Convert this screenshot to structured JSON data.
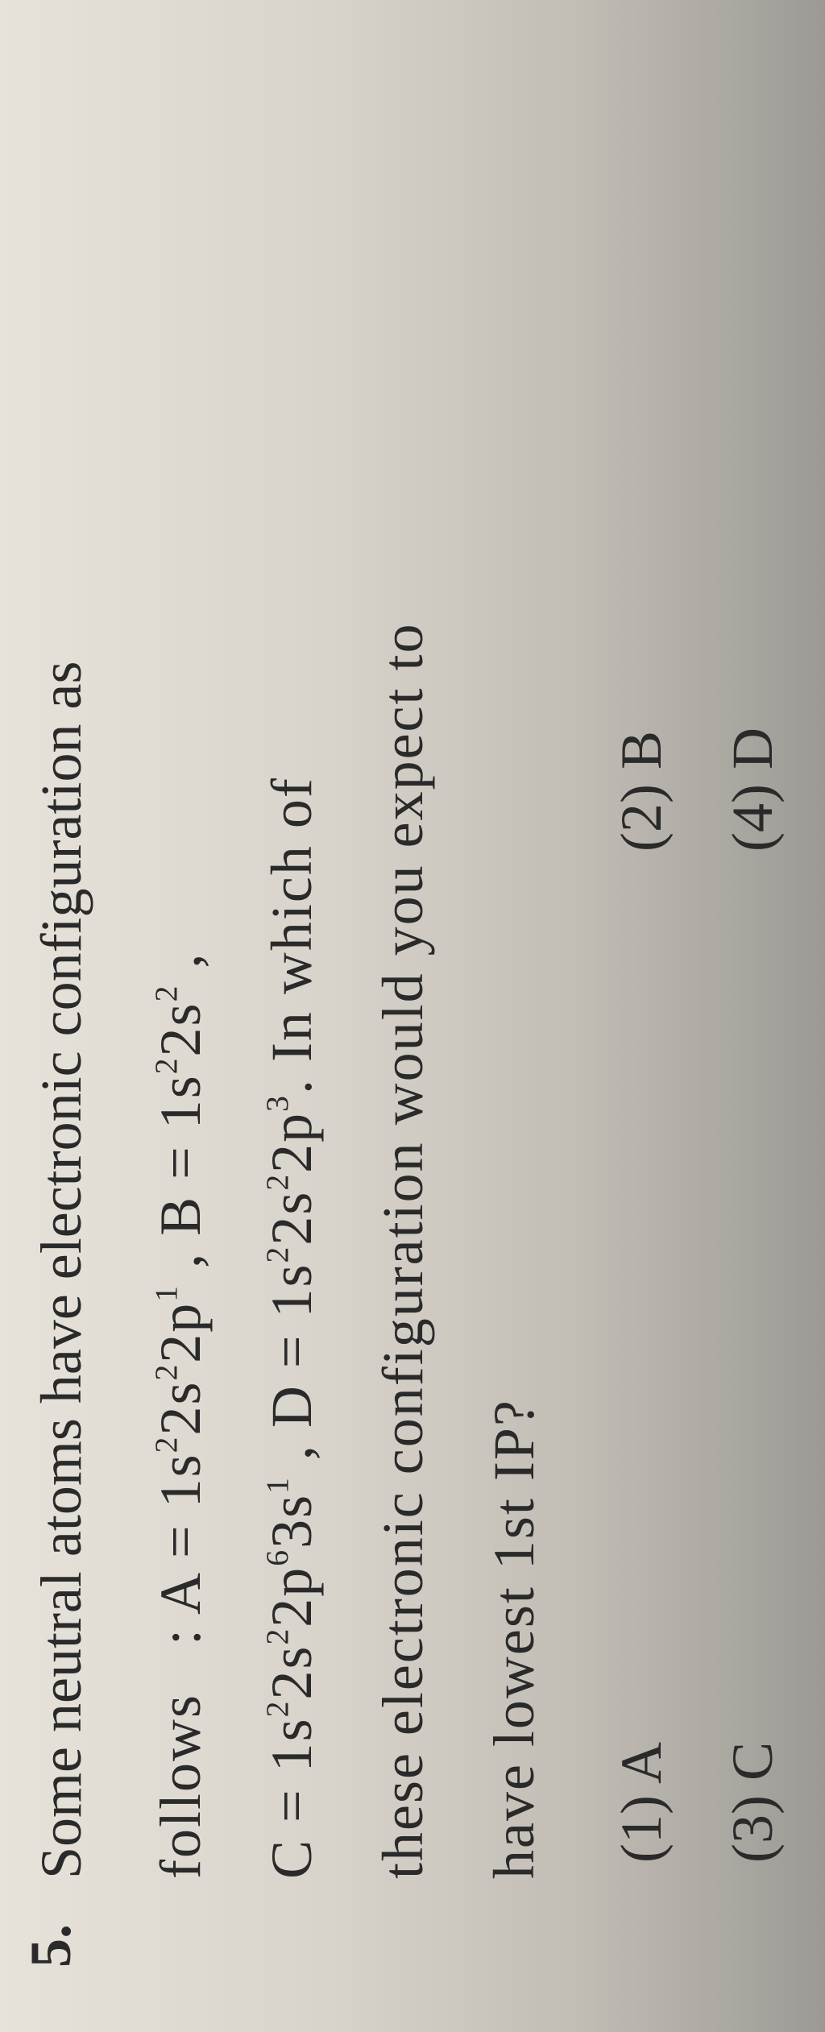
{
  "question": {
    "number": "5.",
    "stem_line1": "Some neutral atoms have electronic configuration as",
    "follows_label": "follows",
    "config_A_prefix": ": A = 1s",
    "config_A_sup1": "2",
    "config_A_mid1": "2s",
    "config_A_sup2": "2",
    "config_A_mid2": "2p",
    "config_A_sup3": "1",
    "comma1": " , ",
    "config_B_prefix": "B = 1s",
    "config_B_sup1": "2",
    "config_B_mid1": "2s",
    "config_B_sup2": "2",
    "comma2": " ,",
    "config_C_prefix": "C = 1s",
    "config_C_sup1": "2",
    "config_C_mid1": "2s",
    "config_C_sup2": "2",
    "config_C_mid2": "2p",
    "config_C_sup3": "6",
    "config_C_mid3": "3s",
    "config_C_sup4": "1",
    "comma3": " , ",
    "config_D_prefix": "D = 1s",
    "config_D_sup1": "2",
    "config_D_mid1": "2s",
    "config_D_sup2": "2",
    "config_D_mid2": "2p",
    "config_D_sup3": "3",
    "period": ".",
    "tail1": " In which of",
    "line3": "these electronic configuration would you expect to",
    "line4": "have lowest 1st IP?"
  },
  "options": {
    "opt1": "(1) A",
    "opt2": "(2) B",
    "opt3": "(3) C",
    "opt4": "(4) D"
  },
  "fragment": ""
}
